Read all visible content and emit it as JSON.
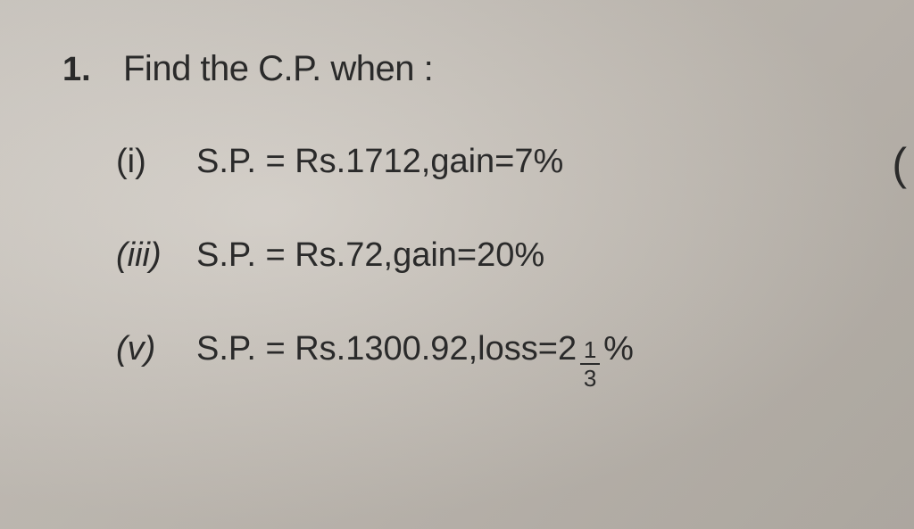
{
  "colors": {
    "text": "#2a2a2a",
    "background_start": "#d4cfc8",
    "background_mid": "#c8c2ba",
    "background_end": "#bab4ac"
  },
  "typography": {
    "font_family": "Arial, Helvetica, sans-serif",
    "question_number_size": 38,
    "question_text_size": 40,
    "sub_item_size": 38,
    "fraction_size": 26
  },
  "question": {
    "number": "1.",
    "text": "Find the C.P. when :"
  },
  "items": [
    {
      "label": "(i)",
      "label_italic": false,
      "prefix": "S.P. = Rs. ",
      "sp_value": "1712",
      "sep": ", ",
      "result_type": "gain",
      "equals": " = ",
      "value_int": "7",
      "has_fraction": false,
      "frac_num": "",
      "frac_den": "",
      "percent": "%"
    },
    {
      "label": "(iii)",
      "label_italic": true,
      "prefix": "S.P. = Rs. ",
      "sp_value": "72",
      "sep": ", ",
      "result_type": "gain",
      "equals": " = ",
      "value_int": "20",
      "has_fraction": false,
      "frac_num": "",
      "frac_den": "",
      "percent": "%"
    },
    {
      "label": "(v)",
      "label_italic": true,
      "prefix": "S.P. = Rs. ",
      "sp_value": "1300.92",
      "sep": ", ",
      "result_type": "loss",
      "equals": " = ",
      "value_int": "2",
      "has_fraction": true,
      "frac_num": "1",
      "frac_den": "3",
      "percent": "%"
    }
  ],
  "decor": {
    "right_paren": "("
  }
}
